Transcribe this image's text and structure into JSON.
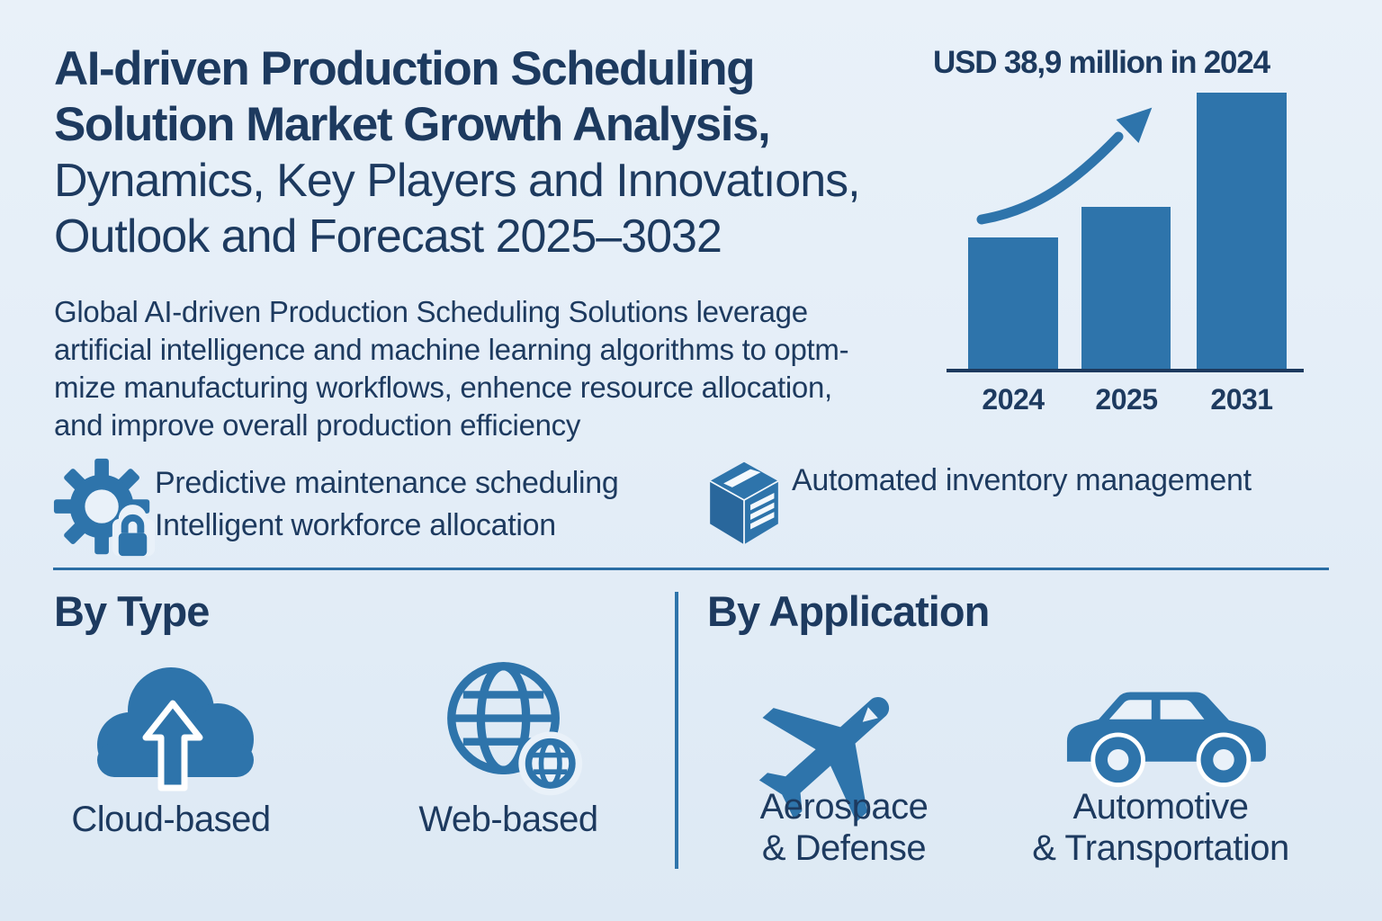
{
  "colors": {
    "background_top": "#e9f1f9",
    "background_bottom": "#dde9f4",
    "navy": "#1d3a5f",
    "blue": "#2e74ab",
    "blue_dark_face": "#29679c",
    "divider": "#2a6da4"
  },
  "header": {
    "title_line1": "AI-driven Production Scheduling",
    "title_line2": "Solution Market Growth Analysis,",
    "title_line3": "Dynamics, Key Players and Innovatıons,",
    "title_line4": "Outlook and Forecast 2025–3032",
    "description": "Global AI-driven Production Scheduling Solutions leverage\nartificial intelligence and machine learning algorithms to optm-\nmize manufacturing workflows, enhence resource allocation,\nand improve overall production efficiency"
  },
  "chart_data": {
    "type": "bar",
    "title": "USD 38,9 million in 2024",
    "categories": [
      "2024",
      "2025",
      "2031"
    ],
    "values": [
      38.9,
      48,
      82
    ],
    "unit": "USD million",
    "xlabel": "",
    "ylabel": "",
    "ylim": [
      0,
      85
    ],
    "grid": false,
    "legend": false,
    "annotation": "curved upward growth arrow between 2024 and 2031 bars"
  },
  "features": {
    "left_lines": "Predictive maintenance scheduling\nIntelligent workforce allocation",
    "right_line": "Automated inventory management"
  },
  "by_type": {
    "title": "By Type",
    "items": [
      {
        "label": "Cloud-based",
        "icon": "cloud-upload-icon"
      },
      {
        "label": "Web-based",
        "icon": "globe-icon"
      }
    ]
  },
  "by_application": {
    "title": "By Application",
    "items": [
      {
        "label": "Aerospace\n& Defense",
        "icon": "airplane-icon"
      },
      {
        "label": "Automotive\n& Transportation",
        "icon": "car-icon"
      }
    ]
  }
}
